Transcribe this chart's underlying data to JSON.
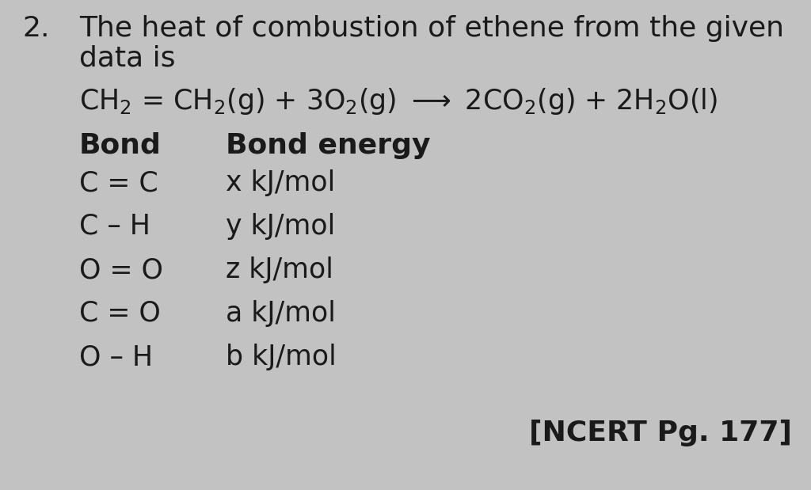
{
  "background_color": "#c2c2c2",
  "text_color": "#1a1a1a",
  "question_number": "2.",
  "question_text_line1": "The heat of combustion of ethene from the given",
  "question_text_line2": "data is",
  "col1_header": "Bond",
  "col2_header": "Bond energy",
  "rows": [
    [
      "C = C",
      "x kJ/mol"
    ],
    [
      "C – H",
      "y kJ/mol"
    ],
    [
      "O = O",
      "z kJ/mol"
    ],
    [
      "C = O",
      "a kJ/mol"
    ],
    [
      "O – H",
      "b kJ/mol"
    ]
  ],
  "ncert_ref": "[NCERT Pg. 177]",
  "font_size_question": 26,
  "font_size_equation": 25,
  "font_size_header": 26,
  "font_size_rows": 25,
  "font_size_ncert": 26
}
